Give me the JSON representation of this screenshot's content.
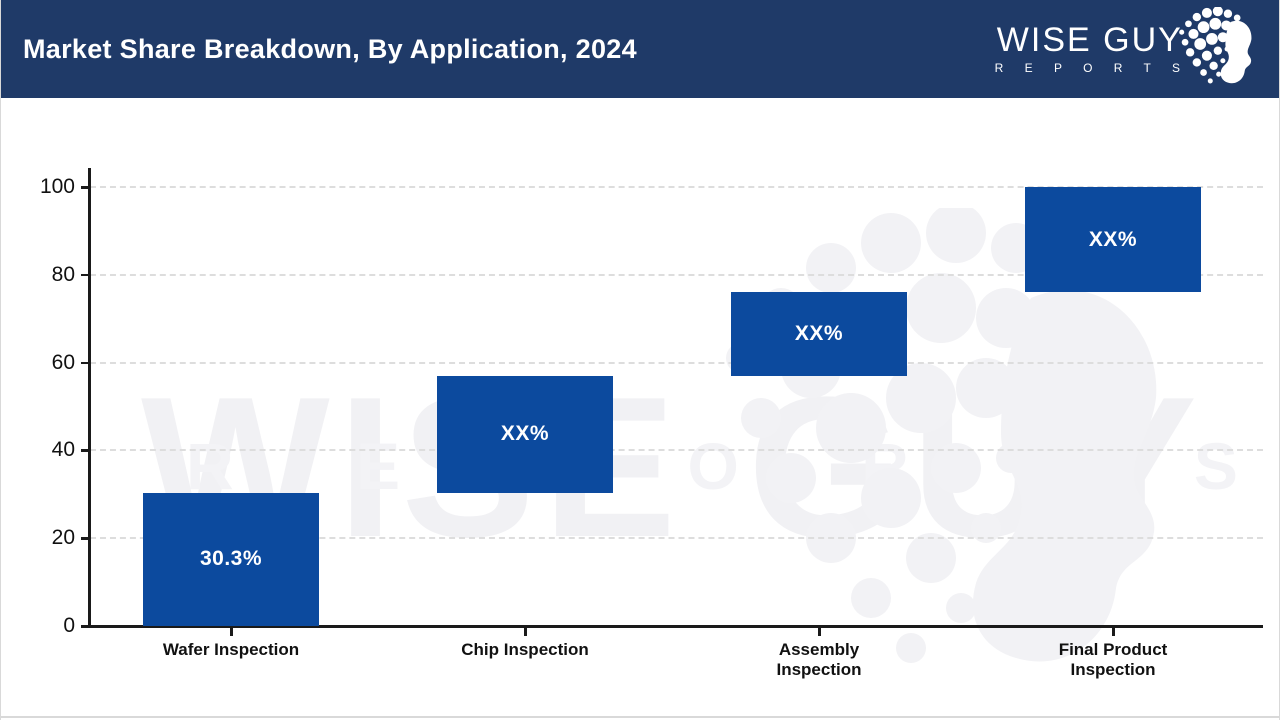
{
  "header": {
    "title": "Market Share Breakdown, By Application, 2024",
    "brand": {
      "name": "WISE GUY",
      "sub": "R E P O R T S"
    }
  },
  "watermark": {
    "line1": "WISE GUY",
    "line2": "R E P O R T S"
  },
  "colors": {
    "header_bg": "#1f3a68",
    "bar": "#0c4a9e",
    "grid": "#dddddd",
    "axis": "#1a1a1a",
    "bar_label": "#ffffff",
    "watermark": "#f1f1f4"
  },
  "chart_data": {
    "type": "bar",
    "subtype": "waterfall",
    "title": "Market Share Breakdown, By Application, 2024",
    "xlabel": "",
    "ylabel": "",
    "ylim": [
      0,
      104
    ],
    "yticks": [
      0,
      20,
      40,
      60,
      80,
      100
    ],
    "grid": "horizontal-dashed",
    "legend": "none",
    "categories": [
      "Wafer Inspection",
      "Chip Inspection",
      "Assembly Inspection",
      "Final Product Inspection"
    ],
    "category_label_lines": [
      [
        "Wafer Inspection"
      ],
      [
        "Chip Inspection"
      ],
      [
        "Assembly",
        "Inspection"
      ],
      [
        "Final Product",
        "Inspection"
      ]
    ],
    "segments": [
      {
        "category": "Wafer Inspection",
        "start": 0,
        "end": 30.3,
        "value_label": "30.3%"
      },
      {
        "category": "Chip Inspection",
        "start": 30.3,
        "end": 57,
        "value_label": "XX%"
      },
      {
        "category": "Assembly Inspection",
        "start": 57,
        "end": 76,
        "value_label": "XX%"
      },
      {
        "category": "Final Product Inspection",
        "start": 76,
        "end": 100,
        "value_label": "XX%"
      }
    ]
  }
}
